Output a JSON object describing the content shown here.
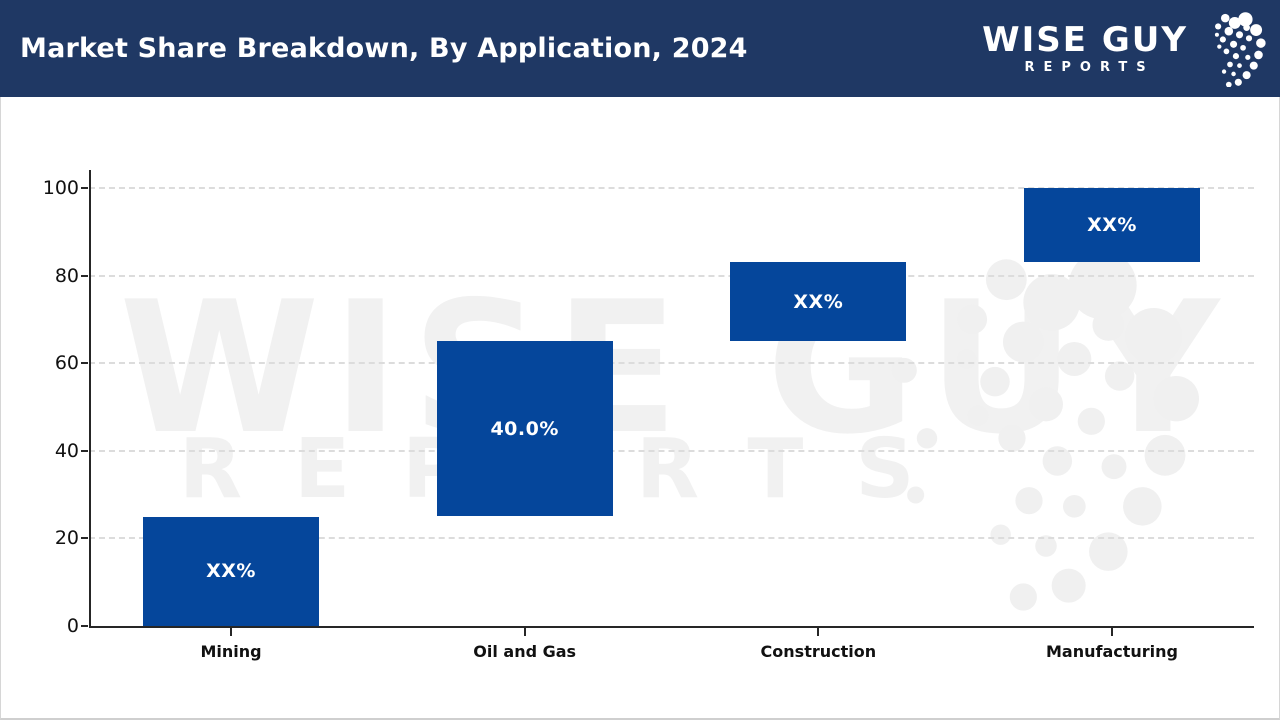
{
  "header": {
    "title": "Market Share Breakdown, By Application, 2024",
    "logo": {
      "line1": "WISE GUY",
      "line2": "REPORTS"
    }
  },
  "watermark": {
    "line1": "WISE GUY",
    "line2": "REPORTS"
  },
  "chart_data": {
    "type": "bar",
    "subtype": "floating-waterfall",
    "title": "Market Share Breakdown, By Application, 2024",
    "categories": [
      "Mining",
      "Oil and Gas",
      "Construction",
      "Manufacturing"
    ],
    "series": [
      {
        "name": "Market Share %",
        "segments": [
          {
            "category": "Mining",
            "start": 0,
            "end": 25,
            "label": "XX%"
          },
          {
            "category": "Oil and Gas",
            "start": 25,
            "end": 65,
            "label": "40.0%"
          },
          {
            "category": "Construction",
            "start": 65,
            "end": 83,
            "label": "XX%"
          },
          {
            "category": "Manufacturing",
            "start": 83,
            "end": 100,
            "label": "XX%"
          }
        ]
      }
    ],
    "ylim": [
      0,
      100
    ],
    "yticks": [
      0,
      20,
      40,
      60,
      80,
      100
    ],
    "xlabel": "",
    "ylabel": "",
    "grid": "horizontal-dashed",
    "legend": "none",
    "bar_color": "#05469B",
    "header_color": "#1F3864"
  }
}
